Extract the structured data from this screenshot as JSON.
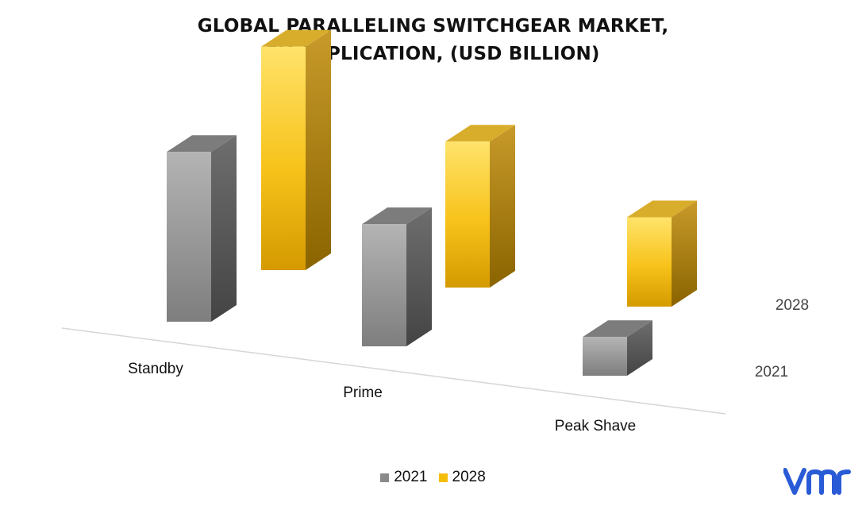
{
  "chart_data": {
    "type": "bar",
    "title_lines": [
      "GLOBAL PARALLELING SWITCHGEAR MARKET,",
      "BY APPLICATION, (USD BILLION)"
    ],
    "categories": [
      "Standby",
      "Prime",
      "Peak Shave"
    ],
    "series": [
      {
        "name": "2021",
        "values": [
          0.57,
          0.41,
          0.13
        ]
      },
      {
        "name": "2028",
        "values": [
          0.75,
          0.49,
          0.3
        ]
      }
    ],
    "depth_labels": [
      "2028",
      "2021"
    ],
    "ylim": [
      0,
      0.8
    ],
    "legend": "bottom-center",
    "grid": false,
    "colors": {
      "2021_front": "#9a9a9a",
      "2021_side": "#5a5a5a",
      "2021_top": "#7c7c7c",
      "2028_front": "#f7c21a",
      "2028_side": "#b8870a",
      "2028_top": "#d9ad2c"
    }
  },
  "legend": {
    "items": [
      {
        "label": "2021",
        "color": "#8a8a8a"
      },
      {
        "label": "2028",
        "color": "#f5be0b"
      }
    ]
  },
  "logo": {
    "name": "vmr-logo-icon",
    "color": "#2a5bd7"
  }
}
